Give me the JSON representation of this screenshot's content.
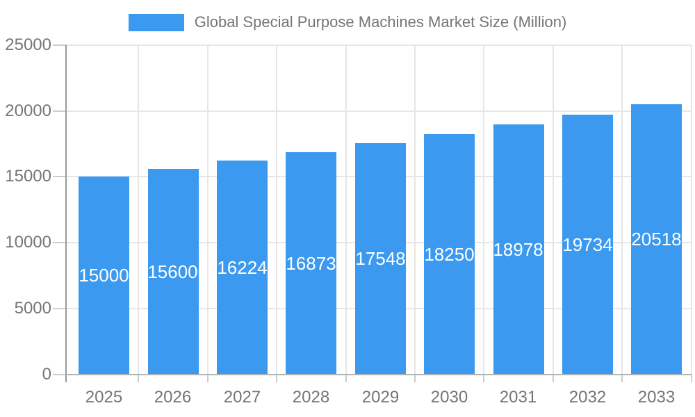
{
  "chart_data": {
    "type": "bar",
    "title": "Global Special Purpose Machines Market Size (Million)",
    "categories": [
      "2025",
      "2026",
      "2027",
      "2028",
      "2029",
      "2030",
      "2031",
      "2032",
      "2033"
    ],
    "values": [
      15000,
      15600,
      16224,
      16873,
      17548,
      18250,
      18978,
      19734,
      20518
    ],
    "series": [
      {
        "name": "Global Special Purpose Machines Market Size (Million)",
        "values": [
          15000,
          15600,
          16224,
          16873,
          17548,
          18250,
          18978,
          19734,
          20518
        ]
      }
    ],
    "xlabel": "",
    "ylabel": "",
    "ylim": [
      0,
      25000
    ],
    "yticks": [
      0,
      5000,
      10000,
      15000,
      20000,
      25000
    ],
    "legend_position": "top",
    "grid": true,
    "value_labels_inside_bars": true,
    "colors": {
      "bar": "#3b99f0",
      "value_label": "#ffffff",
      "axis_text": "#757575",
      "grid_line": "#e6e6e6",
      "tick_line": "#cccccc",
      "axis_line": "#999999",
      "baseline": "#b3b3b3",
      "background": "#ffffff"
    }
  }
}
